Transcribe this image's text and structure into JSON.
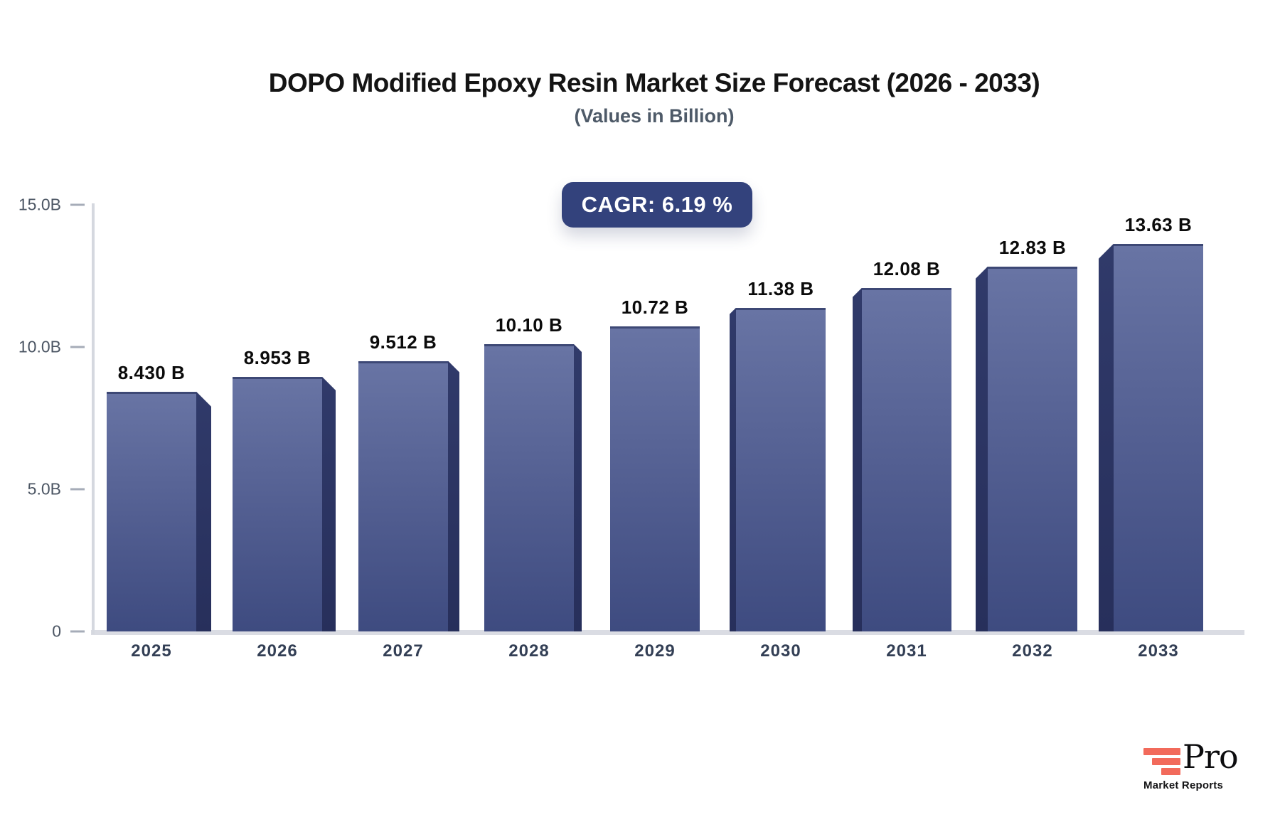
{
  "title": "DOPO Modified Epoxy Resin Market Size Forecast (2026 - 2033)",
  "subtitle": "(Values in Billion)",
  "cagr_badge": "CAGR: 6.19 %",
  "logo": {
    "name": "Pro",
    "tagline": "Market Reports"
  },
  "chart_data": {
    "type": "bar",
    "title": "DOPO Modified Epoxy Resin Market Size Forecast (2026 - 2033)",
    "subtitle": "(Values in Billion)",
    "xlabel": "",
    "ylabel": "",
    "ylim": [
      0,
      15
    ],
    "grid": false,
    "legend": "none",
    "categories": [
      "2025",
      "2026",
      "2027",
      "2028",
      "2029",
      "2030",
      "2031",
      "2032",
      "2033"
    ],
    "values": [
      8.43,
      8.953,
      9.512,
      10.1,
      10.72,
      11.38,
      12.08,
      12.83,
      13.63
    ],
    "value_labels": [
      "8.430 B",
      "8.953 B",
      "9.512 B",
      "10.10 B",
      "10.72 B",
      "11.38 B",
      "12.08 B",
      "12.83 B",
      "13.63 B"
    ],
    "yticks": [
      {
        "label": "15.0B",
        "value": 15
      },
      {
        "label": "10.0B",
        "value": 10
      },
      {
        "label": "5.0B",
        "value": 5
      },
      {
        "label": "0",
        "value": 0
      }
    ],
    "cagr": "6.19 %",
    "colors": {
      "bar_face_top": "#6874a4",
      "bar_face_bottom": "#3e4b80",
      "bar_side": "#2b3465",
      "badge_bg": "#33427c",
      "badge_text": "#ffffff",
      "axis": "#d5d8df",
      "tick_text": "#4b5563",
      "category_text": "#333f55",
      "value_text": "#0b0b0b",
      "logo_accent": "#f26a5b"
    }
  }
}
